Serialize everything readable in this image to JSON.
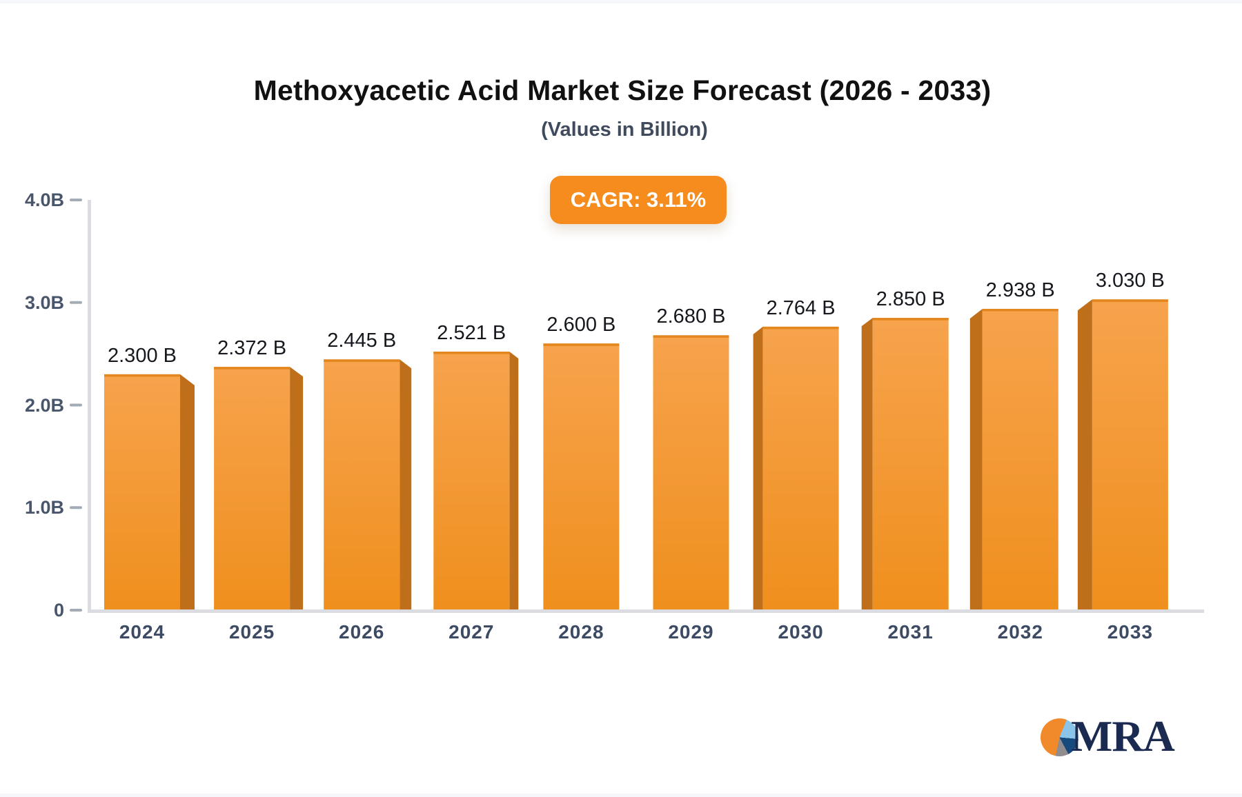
{
  "header": {
    "title": "Methoxyacetic Acid Market Size Forecast (2026 - 2033)",
    "subtitle": "(Values in Billion)",
    "cagr_badge": "CAGR: 3.11%"
  },
  "chart_data": {
    "type": "bar",
    "title": "Methoxyacetic Acid Market Size Forecast (2026 - 2033)",
    "subtitle": "(Values in Billion)",
    "cagr_label": "CAGR: 3.11%",
    "categories": [
      "2024",
      "2025",
      "2026",
      "2027",
      "2028",
      "2029",
      "2030",
      "2031",
      "2032",
      "2033"
    ],
    "values": [
      2.3,
      2.372,
      2.445,
      2.521,
      2.6,
      2.68,
      2.764,
      2.85,
      2.938,
      3.03
    ],
    "value_labels": [
      "2.300 B",
      "2.372 B",
      "2.445 B",
      "2.521 B",
      "2.600 B",
      "2.680 B",
      "2.764 B",
      "2.850 B",
      "2.938 B",
      "3.030 B"
    ],
    "xlabel": "",
    "ylabel": "",
    "ylim": [
      0,
      4.0
    ],
    "ytick_values": [
      0,
      1,
      2,
      3,
      4
    ],
    "ytick_labels": [
      "0",
      "1.0B",
      "2.0B",
      "3.0B",
      "4.0B"
    ],
    "grid": false,
    "legend": false,
    "bar_style": "3d-perspective-center",
    "colors": {
      "bar_face_top": "#f7a34d",
      "bar_face_bottom": "#ef8f1d",
      "bar_top_edge": "#e2861d",
      "bar_side": "#bf6f19",
      "axis_line": "#dadce1",
      "tick_dash": "#a3abb5",
      "badge": "#f78c1e",
      "value_text": "#15181d",
      "axis_text": "#49556a"
    }
  },
  "logo": {
    "text": "MRA",
    "pie_colors": [
      "#f18a2b",
      "#8ac4e9",
      "#164a7c",
      "#8f8d90"
    ]
  }
}
